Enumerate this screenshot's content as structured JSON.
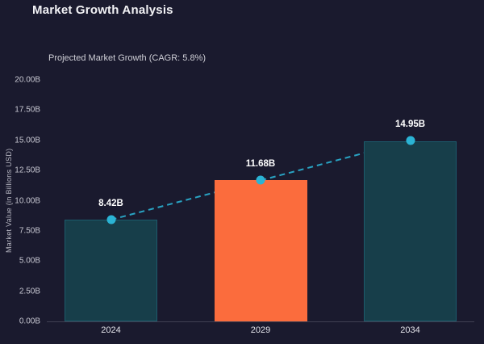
{
  "chart_data": {
    "type": "bar",
    "title": "Market Growth Analysis",
    "subtitle": "Projected Market Growth (CAGR: 5.8%)",
    "categories": [
      "2024",
      "2029",
      "2034"
    ],
    "values": [
      8.42,
      11.68,
      14.95
    ],
    "value_labels": [
      "8.42B",
      "11.68B",
      "14.95B"
    ],
    "bar_colors": [
      "#173e4a",
      "#fb6c3d",
      "#173e4a"
    ],
    "yticks": [
      "20.00B",
      "17.50B",
      "15.00B",
      "12.50B",
      "10.00B",
      "7.50B",
      "5.00B",
      "2.50B",
      "0.00B"
    ],
    "ylim": [
      0,
      20
    ],
    "ylabel": "Market Value (in Billions USD)",
    "xlabel": "",
    "grid": false,
    "legend": false,
    "overlay_line": {
      "style": "dashed",
      "color": "#2bb3d4",
      "marker_color": "#2bb3d4"
    },
    "background": "#1a1a2e",
    "cagr": "5.8%"
  }
}
